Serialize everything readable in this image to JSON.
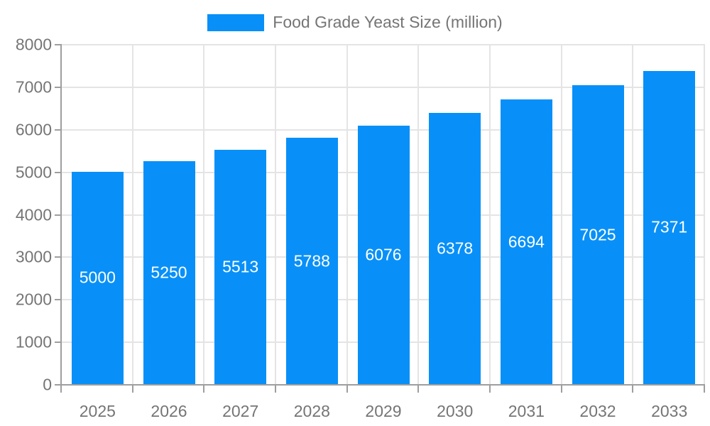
{
  "chart_data": {
    "type": "bar",
    "title": "Food Grade Yeast Size (million)",
    "categories": [
      "2025",
      "2026",
      "2027",
      "2028",
      "2029",
      "2030",
      "2031",
      "2032",
      "2033"
    ],
    "values": [
      5000,
      5250,
      5513,
      5788,
      6076,
      6378,
      6694,
      7025,
      7371
    ],
    "xlabel": "",
    "ylabel": "",
    "ylim": [
      0,
      8000
    ],
    "ytick_step": 1000,
    "ytick_labels": [
      "0",
      "1000",
      "2000",
      "3000",
      "4000",
      "5000",
      "6000",
      "7000",
      "8000"
    ],
    "grid": true,
    "legend_position": "top-center",
    "bar_color": "#0890f8",
    "bar_label_color": "#ffffff",
    "axis_color": "#9e9e9e",
    "gridline_color": "#e4e4e4",
    "text_color": "#757575"
  },
  "legend": {
    "label": "Food Grade Yeast Size (million)"
  }
}
